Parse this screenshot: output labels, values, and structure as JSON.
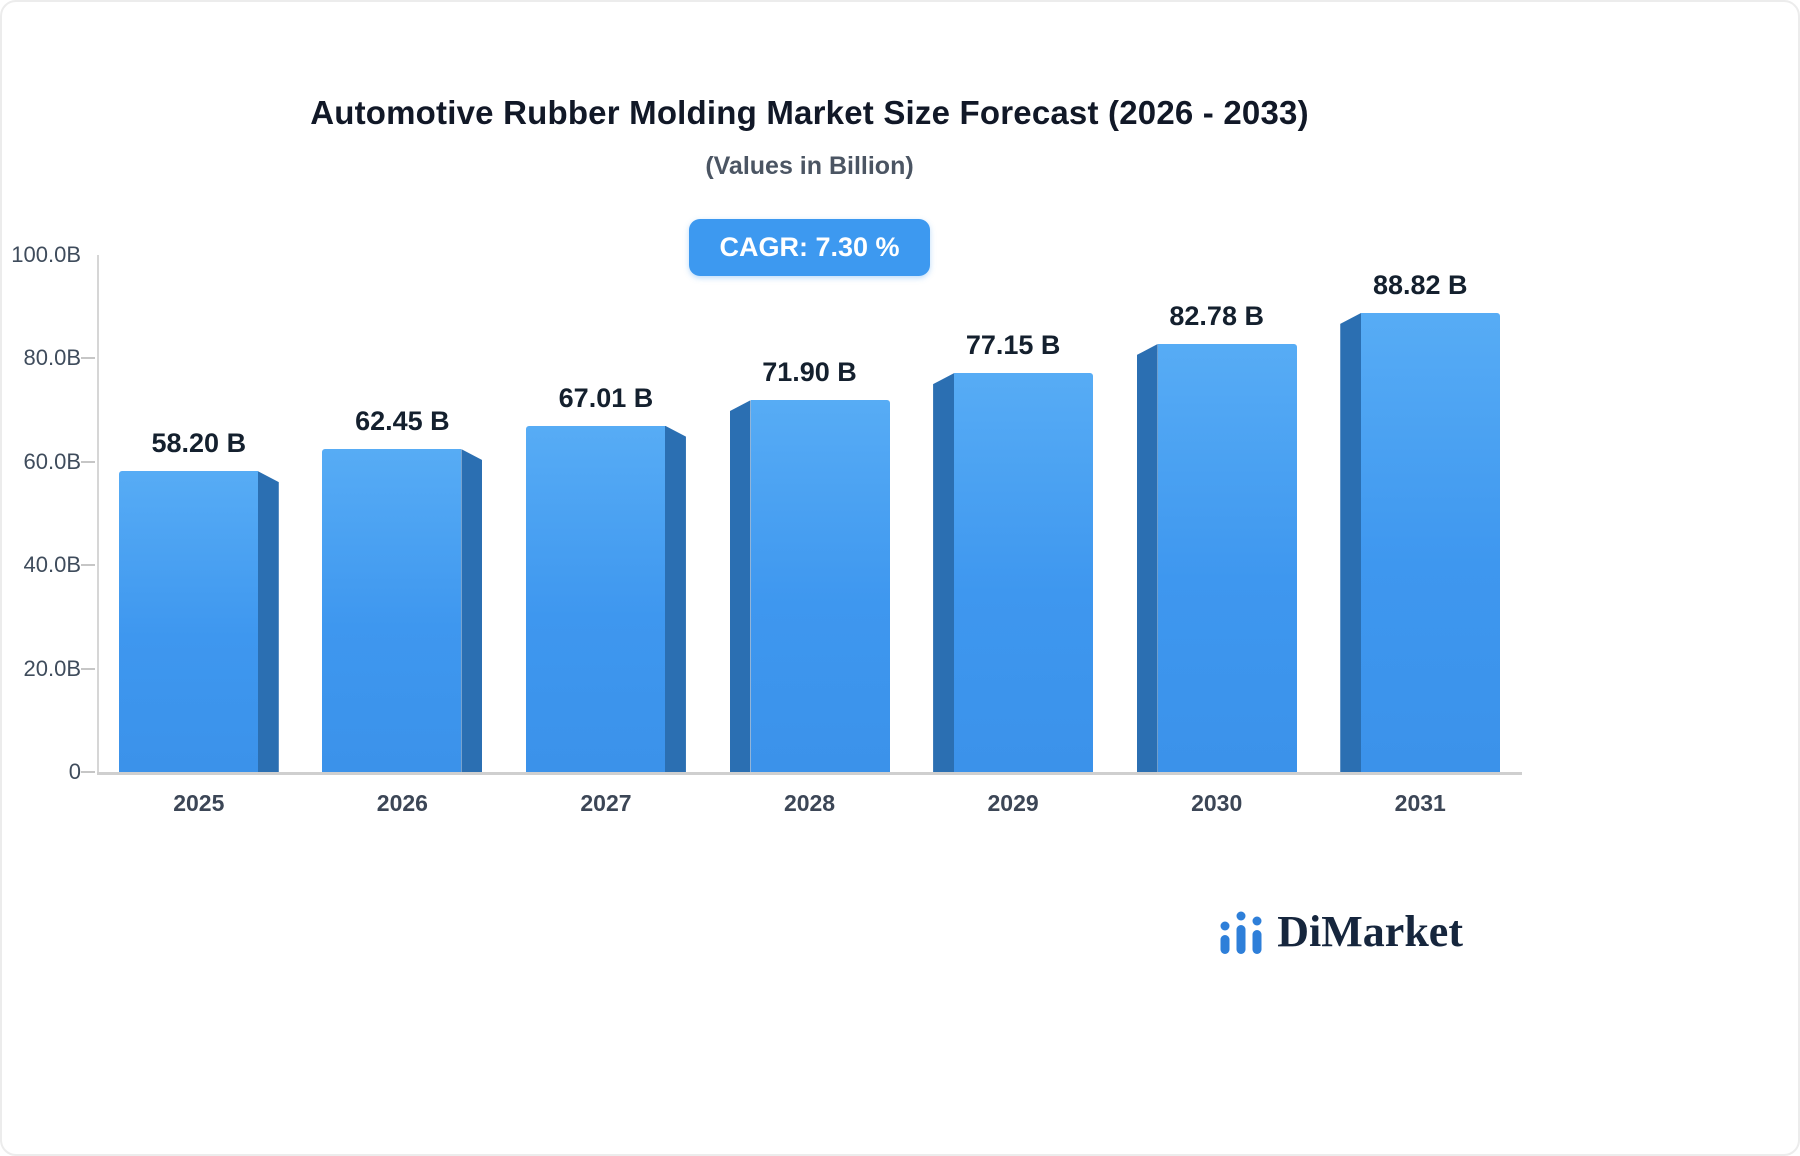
{
  "chart_data": {
    "type": "bar",
    "title": "Automotive Rubber Molding Market Size Forecast (2026 - 2033)",
    "subtitle": "(Values in Billion)",
    "cagr_label": "CAGR: 7.30 %",
    "categories": [
      "2025",
      "2026",
      "2027",
      "2028",
      "2029",
      "2030",
      "2031"
    ],
    "values": [
      58.2,
      62.45,
      67.01,
      71.9,
      77.15,
      82.78,
      88.82
    ],
    "value_labels": [
      "58.20 B",
      "62.45 B",
      "67.01 B",
      "71.90 B",
      "77.15 B",
      "82.78 B",
      "88.82 B"
    ],
    "xlabel": "",
    "ylabel": "",
    "ylim": [
      0,
      100
    ],
    "yticks": [
      {
        "value": 100,
        "label": "100.0B"
      },
      {
        "value": 80,
        "label": "80.0B"
      },
      {
        "value": 60,
        "label": "60.0B"
      },
      {
        "value": 40,
        "label": "40.0B"
      },
      {
        "value": 20,
        "label": "20.0B"
      },
      {
        "value": 0,
        "label": "0"
      }
    ],
    "grid": false,
    "legend": false,
    "bar_color": "#3E97EF",
    "bar_side_color": "#2B6FB2",
    "accent_color": "#3D99F0"
  },
  "logo": {
    "text": "DiMarket",
    "icon": "bar-chart-logo-icon",
    "text_color": "#16263D",
    "icon_color": "#2E7FD9"
  }
}
